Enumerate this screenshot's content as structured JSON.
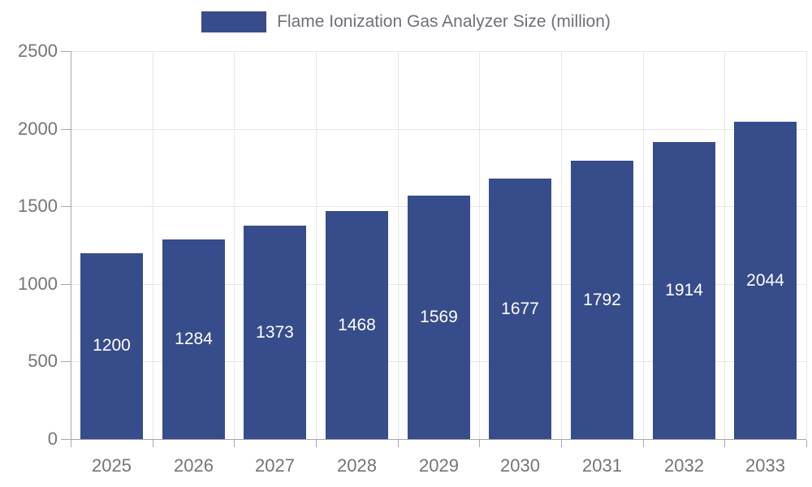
{
  "legend": {
    "label": "Flame Ionization Gas Analyzer Size (million)"
  },
  "chart_data": {
    "type": "bar",
    "title": "",
    "xlabel": "",
    "ylabel": "",
    "categories": [
      "2025",
      "2026",
      "2027",
      "2028",
      "2029",
      "2030",
      "2031",
      "2032",
      "2033"
    ],
    "series": [
      {
        "name": "Flame Ionization Gas Analyzer Size (million)",
        "values": [
          1200,
          1284,
          1373,
          1468,
          1569,
          1677,
          1792,
          1914,
          2044
        ]
      }
    ],
    "value_labels": [
      "1200",
      "1284",
      "1373",
      "1468",
      "1569",
      "1677",
      "1792",
      "1914",
      "2044"
    ],
    "ylim": [
      0,
      2500
    ],
    "yticks": [
      0,
      500,
      1000,
      1500,
      2000,
      2500
    ],
    "grid": true,
    "legend_position": "top"
  },
  "colors": {
    "bar": "#374c8a",
    "grid": "#e6e6e6",
    "axis": "#a6a6a6",
    "tick_text": "#757575",
    "legend_text": "#6e7079",
    "value_label": "#ffffff",
    "background": "#ffffff"
  }
}
